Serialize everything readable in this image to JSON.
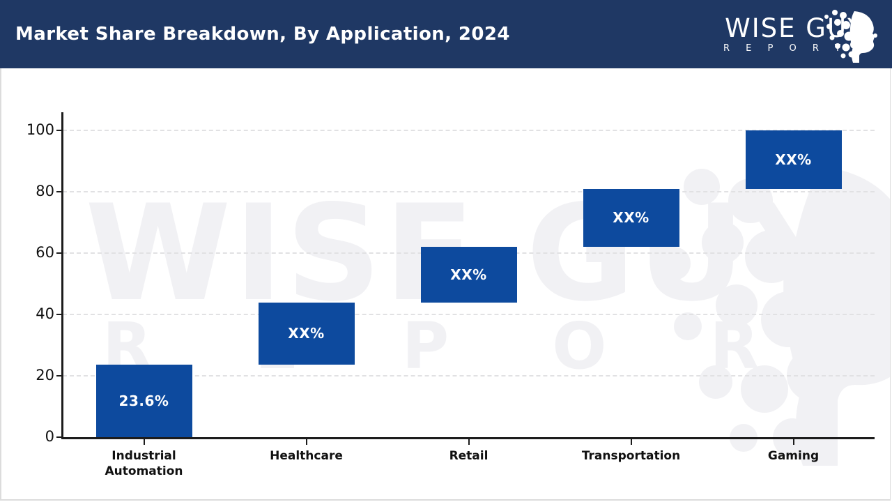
{
  "header": {
    "title": "Market Share Breakdown, By Application, 2024",
    "bg_color": "#1f3864",
    "logo": {
      "line1": "WISE GUY",
      "line2": "R E P O R T S",
      "face_icon": "dotted-head-profile"
    }
  },
  "watermark": {
    "line1": "WISE GUY",
    "line2": "R E P O R T S",
    "face_icon": "dotted-head-profile",
    "color": "#f1f1f4"
  },
  "chart_data": {
    "type": "bar",
    "subtype": "waterfall",
    "title": "Market Share Breakdown, By Application, 2024",
    "xlabel": "",
    "ylabel": "",
    "ylim": [
      0,
      105
    ],
    "grid": "horizontal-dashed",
    "legend": "none",
    "bar_color": "#0d4a9e",
    "y_ticks": [
      0,
      20,
      40,
      60,
      80,
      100
    ],
    "categories": [
      "Industrial Automation",
      "Healthcare",
      "Retail",
      "Transportation",
      "Gaming"
    ],
    "category_label_lines": [
      [
        "Industrial",
        "Automation"
      ],
      [
        "Healthcare"
      ],
      [
        "Retail"
      ],
      [
        "Transportation"
      ],
      [
        "Gaming"
      ]
    ],
    "segments": [
      {
        "category": "Industrial Automation",
        "start": 0,
        "end": 23.6,
        "label": "23.6%"
      },
      {
        "category": "Healthcare",
        "start": 23.6,
        "end": 43.9,
        "label": "XX%"
      },
      {
        "category": "Retail",
        "start": 43.9,
        "end": 62.0,
        "label": "XX%"
      },
      {
        "category": "Transportation",
        "start": 62.0,
        "end": 81.0,
        "label": "XX%"
      },
      {
        "category": "Gaming",
        "start": 81.0,
        "end": 100.0,
        "label": "XX%"
      }
    ]
  }
}
